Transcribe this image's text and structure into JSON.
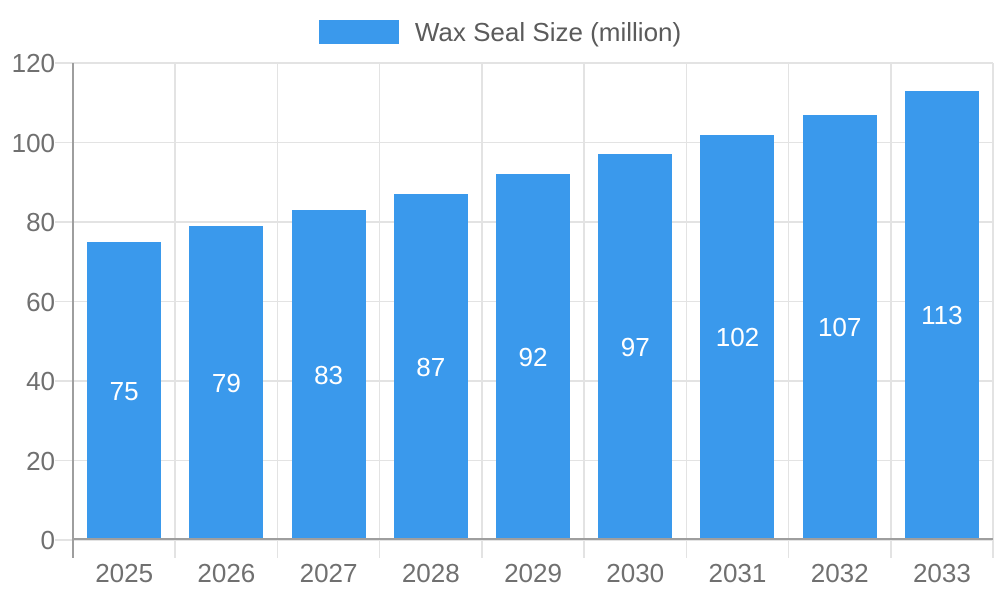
{
  "chart_data": {
    "type": "bar",
    "title": "Wax Seal Size (million)",
    "legend_position": "top",
    "categories": [
      "2025",
      "2026",
      "2027",
      "2028",
      "2029",
      "2030",
      "2031",
      "2032",
      "2033"
    ],
    "series": [
      {
        "name": "Wax Seal Size (million)",
        "values": [
          75,
          79,
          83,
          87,
          92,
          97,
          102,
          107,
          113
        ]
      }
    ],
    "bar_value_labels": [
      "75",
      "79",
      "83",
      "87",
      "92",
      "97",
      "102",
      "107",
      "113"
    ],
    "xlabel": "",
    "ylabel": "",
    "ylim": [
      0,
      120
    ],
    "yticks": [
      0,
      20,
      40,
      60,
      80,
      100,
      120
    ],
    "grid": true,
    "colors": {
      "bar": "#3A99EC",
      "bar_value_label": "#ffffff",
      "legend_text": "#5b5b5b",
      "axis_label": "#707070",
      "gridline": "#e3e3e3",
      "axis_line": "#9e9e9e",
      "background": "#ffffff"
    }
  }
}
